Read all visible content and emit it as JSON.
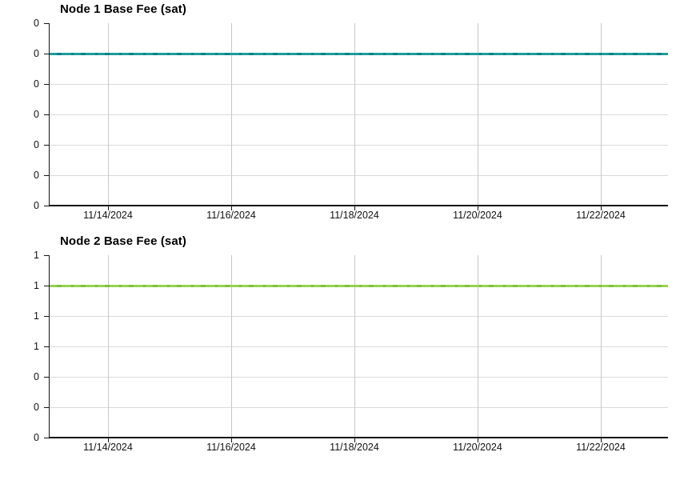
{
  "page": {
    "background_color": "#ffffff",
    "text_color": "#111111",
    "axis_color": "#141414",
    "h_grid_color": "#d9d9d9",
    "v_grid_color": "#c7c7c7"
  },
  "chart_data": [
    {
      "type": "line",
      "title": "Node 1 Base Fee (sat)",
      "xlabel": "",
      "ylabel": "",
      "x_tick_labels": [
        "11/14/2024",
        "11/16/2024",
        "11/18/2024",
        "11/20/2024",
        "11/22/2024"
      ],
      "y_tick_labels": [
        "0",
        "0",
        "0",
        "0",
        "0",
        "0",
        "0"
      ],
      "x_range": [
        "11/13/2024",
        "11/23/2024"
      ],
      "grid": true,
      "legend": "none",
      "series": [
        {
          "name": "Node 1 Base Fee",
          "constant_value": 0,
          "note": "flat horizontal line spanning full x-range at the second y-tick from top",
          "line_at_tick_index": 1,
          "color": "#1f9c9c",
          "dash_color": "#0c8183"
        }
      ]
    },
    {
      "type": "line",
      "title": "Node 2 Base Fee (sat)",
      "xlabel": "",
      "ylabel": "",
      "x_tick_labels": [
        "11/14/2024",
        "11/16/2024",
        "11/18/2024",
        "11/20/2024",
        "11/22/2024"
      ],
      "y_tick_labels": [
        "1",
        "1",
        "1",
        "1",
        "0",
        "0",
        "0"
      ],
      "x_range": [
        "11/13/2024",
        "11/23/2024"
      ],
      "grid": true,
      "legend": "none",
      "series": [
        {
          "name": "Node 2 Base Fee",
          "constant_value": 1,
          "note": "flat horizontal line spanning full x-range at the second y-tick from top",
          "line_at_tick_index": 1,
          "color": "#97d14e",
          "dash_color": "#7cc13c"
        }
      ]
    }
  ]
}
